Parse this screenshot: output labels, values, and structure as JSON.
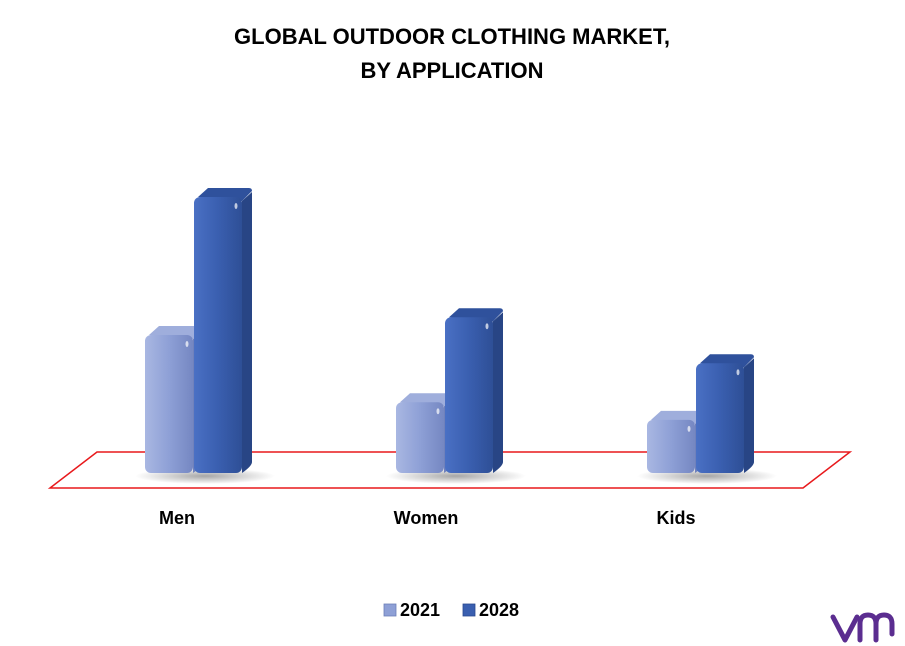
{
  "chart_data": {
    "type": "bar",
    "title_lines": [
      "GLOBAL OUTDOOR CLOTHING MARKET,",
      "BY APPLICATION"
    ],
    "categories": [
      "Men",
      "Women",
      "Kids"
    ],
    "series": [
      {
        "name": "2021",
        "values": [
          3.9,
          2.0,
          1.5
        ],
        "color": "#8EA0D6"
      },
      {
        "name": "2028",
        "values": [
          7.8,
          4.4,
          3.1
        ],
        "color": "#3A5FB0"
      }
    ],
    "ylim": [
      0,
      8.5
    ],
    "grid": false,
    "legend_position": "bottom",
    "floor_outline_color": "#E8191C"
  },
  "brand": {
    "logo_text": "vm",
    "color": "#5B2D90"
  }
}
